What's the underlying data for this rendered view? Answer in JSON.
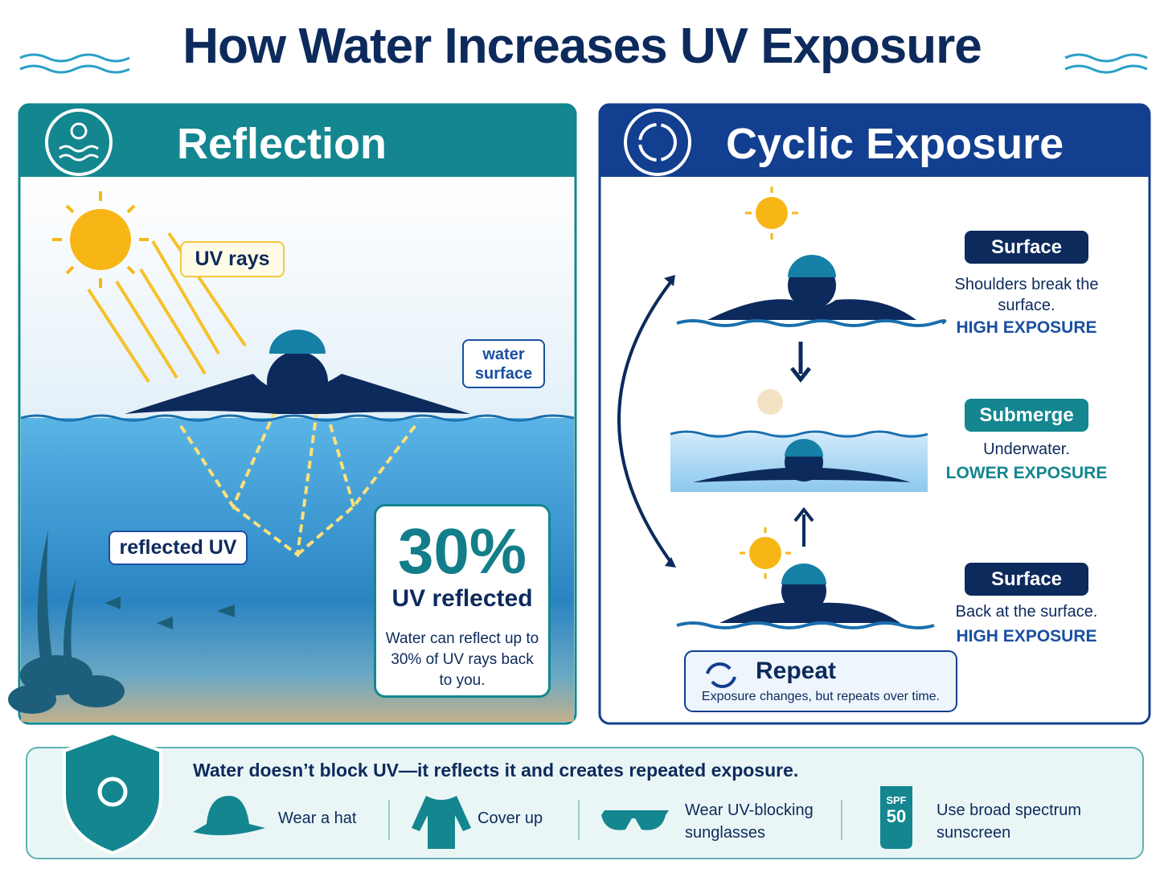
{
  "title": "How Water Increases UV Exposure",
  "reflection": {
    "heading": "Reflection",
    "uv_rays_label": "UV rays",
    "water_surface_label": "water surface",
    "reflected_label": "reflected UV",
    "stat": {
      "value": "30%",
      "label": "UV reflected",
      "text": "Water can reflect up to 30% of UV rays back to you."
    }
  },
  "cyclic": {
    "heading": "Cyclic Exposure",
    "stages": [
      {
        "tag": "Surface",
        "description": "Shoulders break the surface.",
        "exposure": "HIGH EXPOSURE"
      },
      {
        "tag": "Submerge",
        "description": "Underwater.",
        "exposure": "LOWER EXPOSURE"
      },
      {
        "tag": "Surface",
        "description": "Back at the surface.",
        "exposure": "HIGH EXPOSURE"
      }
    ],
    "repeat": {
      "title": "Repeat",
      "text": "Exposure changes, but repeats over time."
    }
  },
  "footer": {
    "message": "Water doesn’t block UV—it reflects it and creates repeated exposure.",
    "tips": [
      {
        "text": "Wear a hat"
      },
      {
        "text": "Cover up"
      },
      {
        "text": "Wear UV-blocking sunglasses"
      },
      {
        "text": "Use broad spectrum sunscreen"
      }
    ],
    "spf_label": "SPF",
    "spf_value": "50"
  }
}
